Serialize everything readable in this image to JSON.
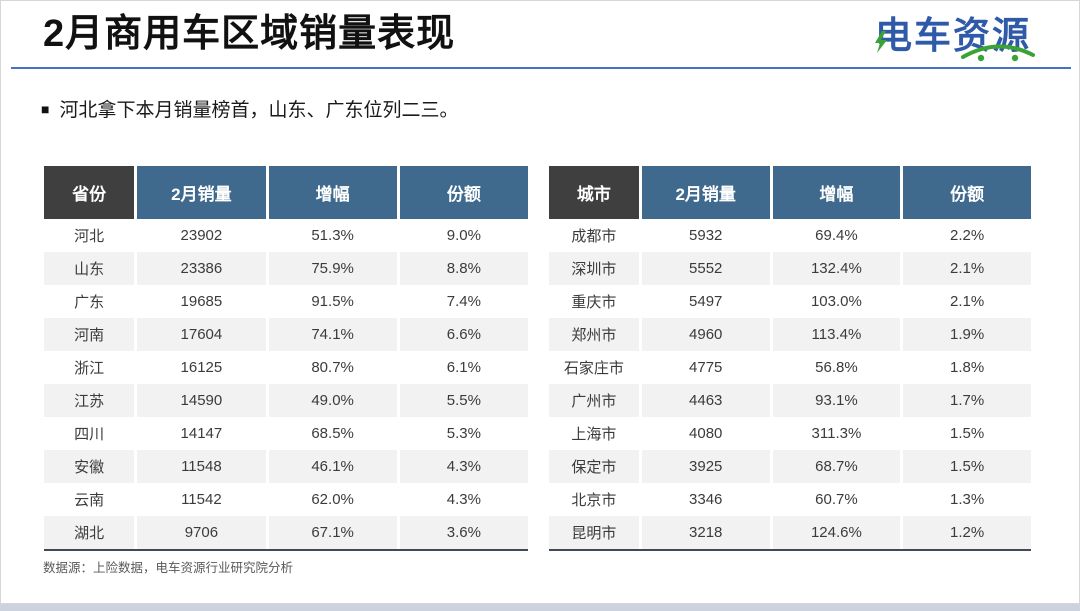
{
  "slide": {
    "title": "2月商用车区域销量表现",
    "bullet_marker": "■",
    "bullet": "河北拿下本月销量榜首，山东、广东位列二三。",
    "source_note": "数据源：上险数据，电车资源行业研究院分析"
  },
  "logo": {
    "text": "电车资源",
    "chars": [
      "电",
      "车",
      "资",
      "源"
    ]
  },
  "colors": {
    "header_dark": "#3f3f3f",
    "header_blue": "#3f6a8d",
    "row_alt": "#f2f2f2",
    "title_underline": "#4472c4",
    "table_bottom_border": "#3f4a56",
    "logo_blue": "#2f5aa8",
    "logo_green": "#3aa335",
    "source_text": "#595959",
    "bottom_strip": "#ccd3df"
  },
  "tables": [
    {
      "name": "province-sales",
      "headers": [
        "省份",
        "2月销量",
        "增幅",
        "份额"
      ],
      "rows": [
        [
          "河北",
          "23902",
          "51.3%",
          "9.0%"
        ],
        [
          "山东",
          "23386",
          "75.9%",
          "8.8%"
        ],
        [
          "广东",
          "19685",
          "91.5%",
          "7.4%"
        ],
        [
          "河南",
          "17604",
          "74.1%",
          "6.6%"
        ],
        [
          "浙江",
          "16125",
          "80.7%",
          "6.1%"
        ],
        [
          "江苏",
          "14590",
          "49.0%",
          "5.5%"
        ],
        [
          "四川",
          "14147",
          "68.5%",
          "5.3%"
        ],
        [
          "安徽",
          "11548",
          "46.1%",
          "4.3%"
        ],
        [
          "云南",
          "11542",
          "62.0%",
          "4.3%"
        ],
        [
          "湖北",
          "9706",
          "67.1%",
          "3.6%"
        ]
      ]
    },
    {
      "name": "city-sales",
      "headers": [
        "城市",
        "2月销量",
        "增幅",
        "份额"
      ],
      "rows": [
        [
          "成都市",
          "5932",
          "69.4%",
          "2.2%"
        ],
        [
          "深圳市",
          "5552",
          "132.4%",
          "2.1%"
        ],
        [
          "重庆市",
          "5497",
          "103.0%",
          "2.1%"
        ],
        [
          "郑州市",
          "4960",
          "113.4%",
          "1.9%"
        ],
        [
          "石家庄市",
          "4775",
          "56.8%",
          "1.8%"
        ],
        [
          "广州市",
          "4463",
          "93.1%",
          "1.7%"
        ],
        [
          "上海市",
          "4080",
          "311.3%",
          "1.5%"
        ],
        [
          "保定市",
          "3925",
          "68.7%",
          "1.5%"
        ],
        [
          "北京市",
          "3346",
          "60.7%",
          "1.3%"
        ],
        [
          "昆明市",
          "3218",
          "124.6%",
          "1.2%"
        ]
      ]
    }
  ]
}
